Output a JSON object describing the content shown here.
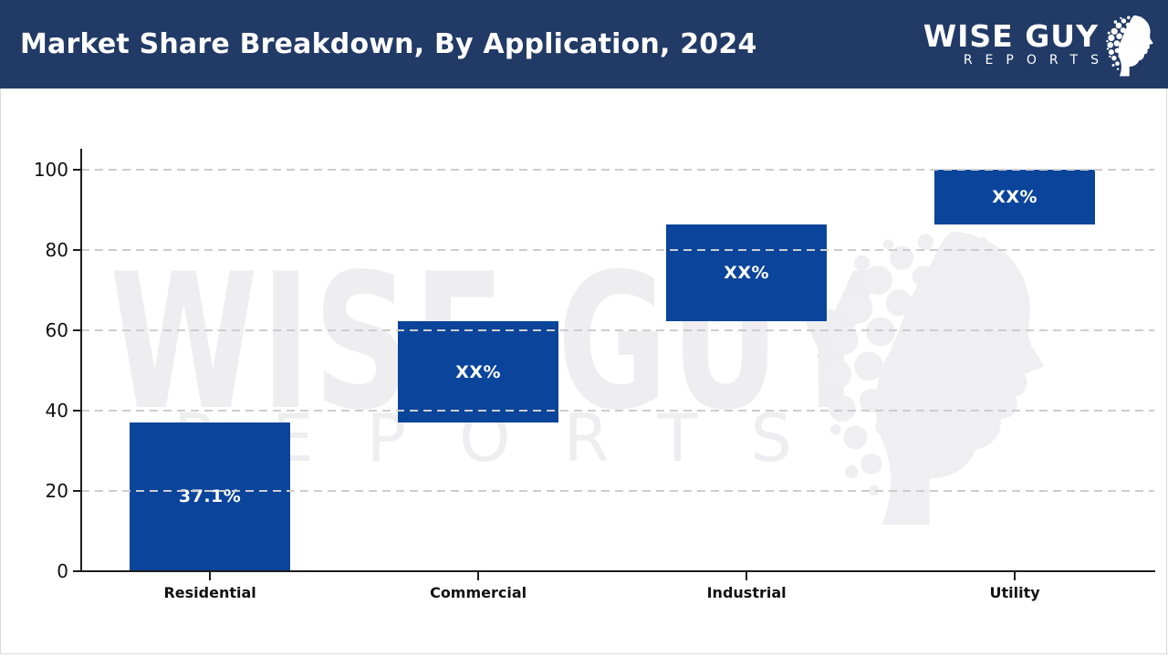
{
  "header": {
    "title": "Market Share Breakdown, By Application, 2024",
    "bg_color": "#213A66",
    "logo": {
      "line1": "WISE GUY",
      "line2": "REPORTS"
    }
  },
  "watermark": {
    "line1": "WISE GUY",
    "line2": "REPORTS"
  },
  "colors": {
    "header_bg": "#213A66",
    "bar": "#0A449B",
    "grid": "#cdcdcd",
    "axis": "#1c1c1c",
    "watermark": "#eeeef1",
    "bar_label": "#ffffff"
  },
  "chart_data": {
    "type": "bar",
    "subtype": "waterfall",
    "title": "Market Share Breakdown, By Application, 2024",
    "xlabel": "",
    "ylabel": "",
    "categories": [
      "Residential",
      "Commercial",
      "Industrial",
      "Utility"
    ],
    "segments": [
      {
        "category": "Residential",
        "start": 0,
        "end": 37.1,
        "label": "37.1%"
      },
      {
        "category": "Commercial",
        "start": 37.1,
        "end": 62.2,
        "label": "XX%"
      },
      {
        "category": "Industrial",
        "start": 62.2,
        "end": 86.3,
        "label": "XX%"
      },
      {
        "category": "Utility",
        "start": 86.3,
        "end": 100,
        "label": "XX%"
      }
    ],
    "yticks": [
      0,
      20,
      40,
      60,
      80,
      100
    ],
    "ylim": [
      0,
      105
    ],
    "grid": "horizontal-dashed",
    "legend": "none",
    "bar_color": "#0A449B"
  }
}
